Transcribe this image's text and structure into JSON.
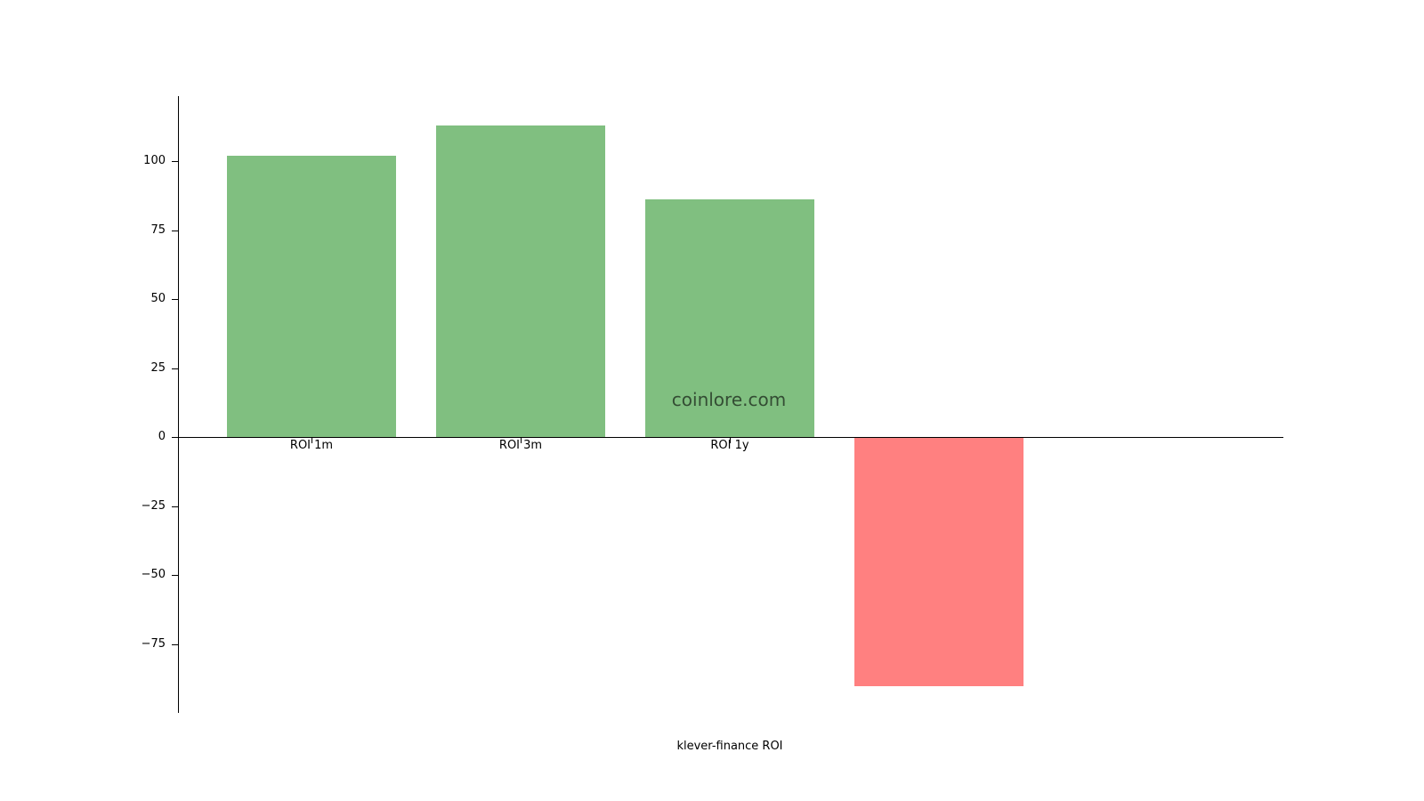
{
  "page": {
    "background": "#ffffff"
  },
  "chart_data": {
    "type": "bar",
    "title": "",
    "xlabel": "klever-finance ROI",
    "ylabel": "",
    "categories": [
      "ROI 1m",
      "ROI 3m",
      "ROI 1y",
      ""
    ],
    "values": [
      102,
      113,
      86,
      -90
    ],
    "bar_colors": [
      "#80bf80",
      "#80bf80",
      "#80bf80",
      "#ff8080"
    ],
    "positive_color": "#80bf80",
    "negative_color": "#ff8080",
    "yticks": [
      100,
      75,
      50,
      25,
      0,
      -25,
      -50,
      -75
    ],
    "ylim": [
      -100,
      123.5
    ],
    "grid": false,
    "legend": "none",
    "axis_color": "#000000",
    "text_color": "#000000",
    "watermark": "coinlore.com"
  }
}
